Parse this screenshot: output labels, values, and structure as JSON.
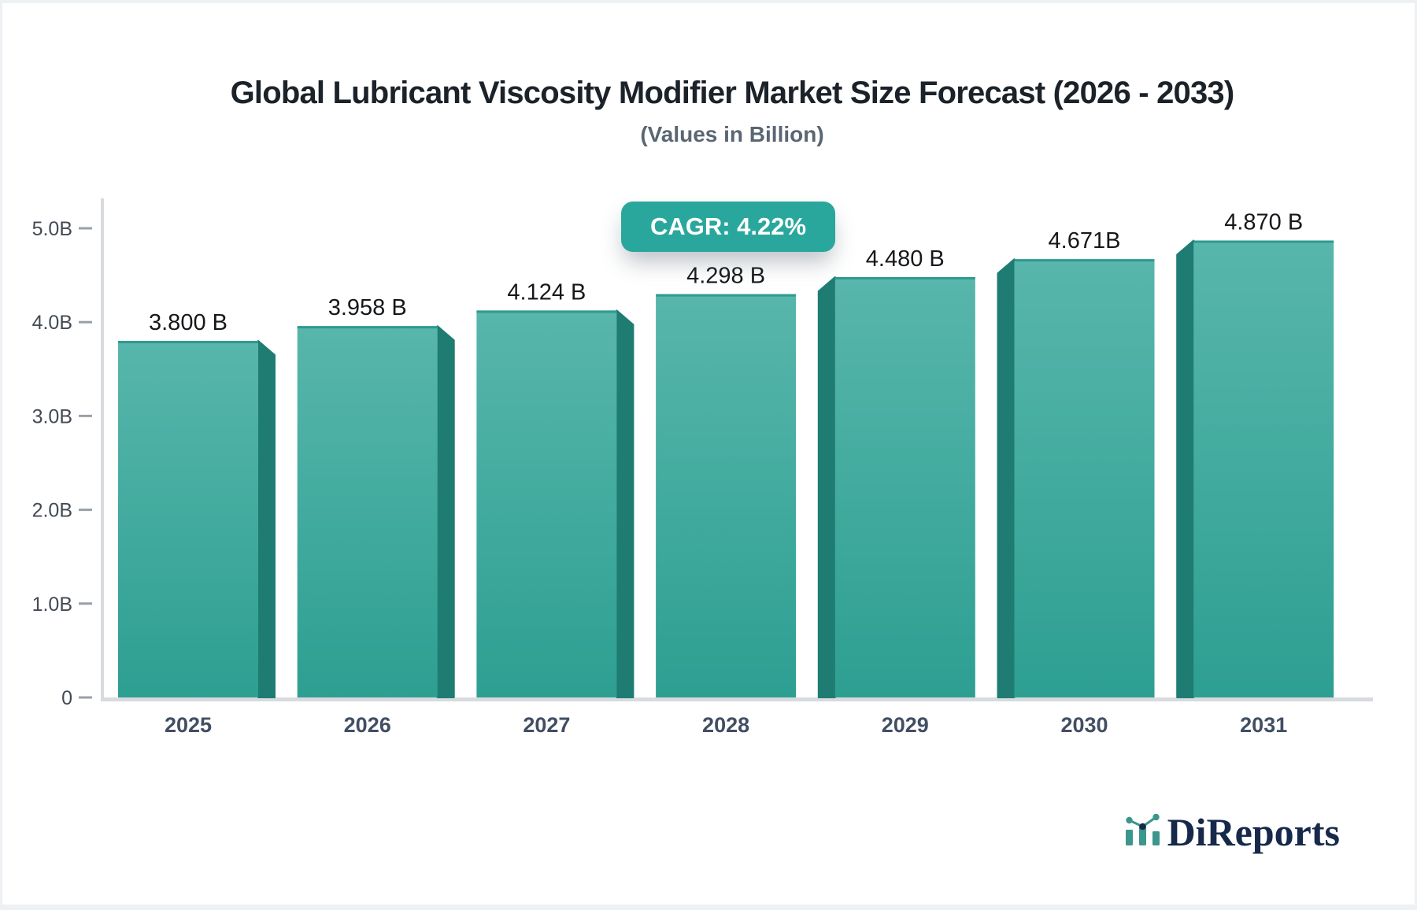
{
  "chart_data": {
    "type": "bar",
    "title": "Global Lubricant Viscosity Modifier Market Size Forecast (2026 - 2033)",
    "subtitle": "(Values in Billion)",
    "annotation": "CAGR: 4.22%",
    "categories": [
      "2025",
      "2026",
      "2027",
      "2028",
      "2029",
      "2030",
      "2031"
    ],
    "values": [
      3.8,
      3.958,
      4.124,
      4.298,
      4.48,
      4.671,
      4.87
    ],
    "value_labels": [
      "3.800 B",
      "3.958 B",
      "4.124 B",
      "4.298 B",
      "4.480 B",
      "4.671B",
      "4.870 B"
    ],
    "xlabel": "",
    "ylabel": "",
    "ylim": [
      0,
      5
    ],
    "y_tick_labels": [
      "0",
      "1.0B",
      "2.0B",
      "3.0B",
      "4.0B",
      "5.0B"
    ],
    "grid": false,
    "legend": false,
    "colors": {
      "bar_face_top": "#58b6ac",
      "bar_face_bottom": "#2d9f92",
      "bar_top_line": "#2f9a8e",
      "bar_side": "#1f7c72",
      "axis_line": "#d7dade",
      "tick_dash": "#99a0a8",
      "y_label": "#434a53",
      "x_label": "#414e63",
      "value_label": "#15181b",
      "badge_background": "#2aa79c",
      "badge_text": "#ffffff"
    }
  },
  "branding": {
    "logo_text": "DiReports",
    "logo_icon": "bar-chart-logo-icon",
    "logo_text_color": "#16294a",
    "logo_icon_color": "#3b968c"
  }
}
